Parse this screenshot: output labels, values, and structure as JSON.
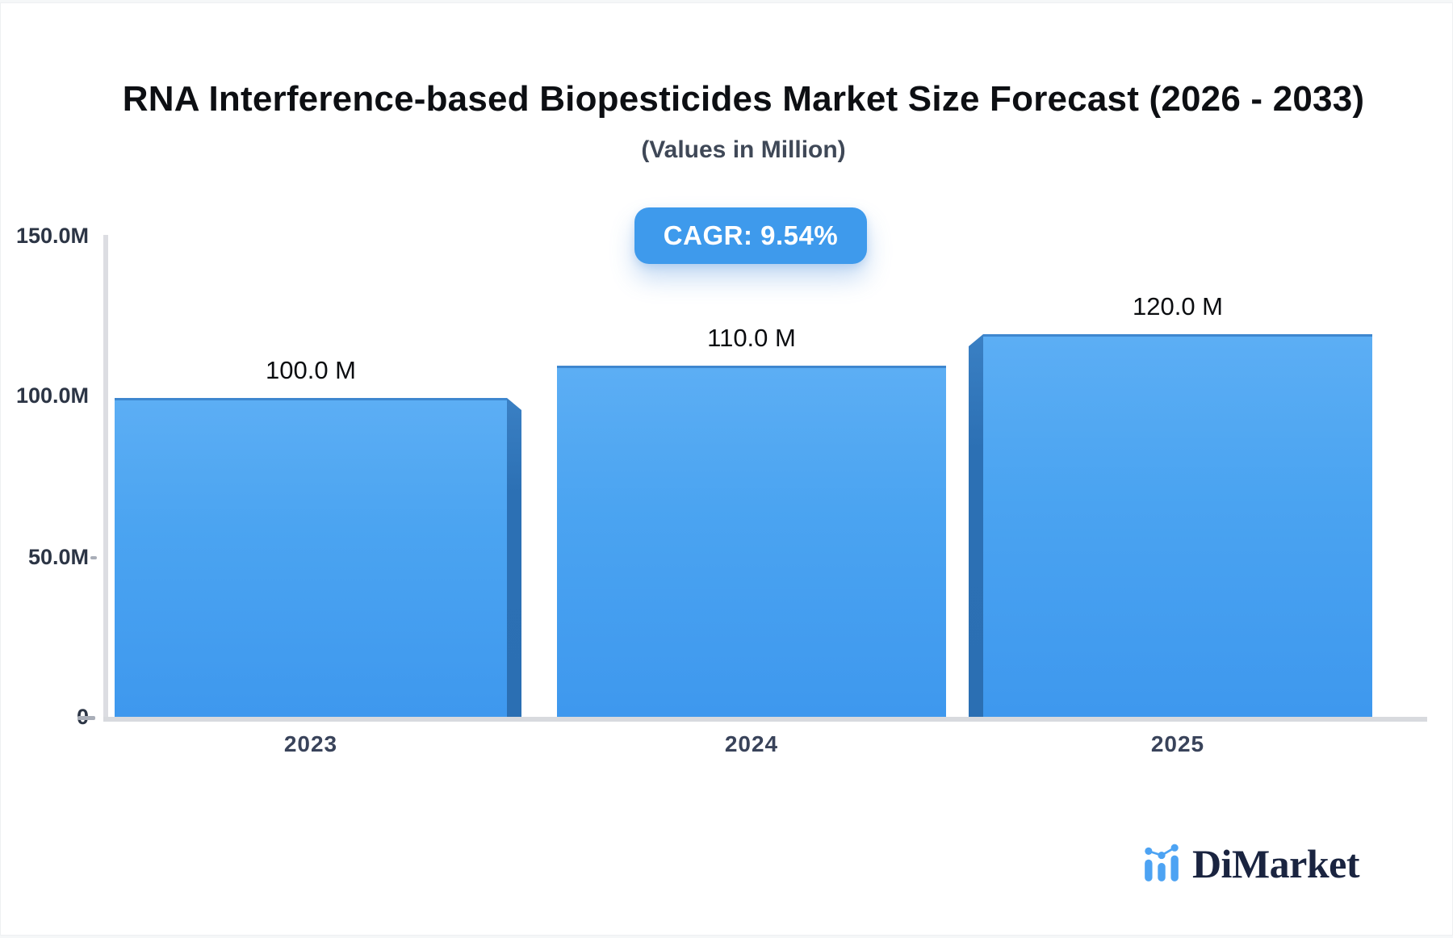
{
  "header": {
    "title": "RNA Interference-based Biopesticides Market Size Forecast (2026 - 2033)",
    "subtitle": "(Values in Million)",
    "cagr_badge": "CAGR: 9.54%"
  },
  "chart_data": {
    "type": "bar",
    "title": "RNA Interference-based Biopesticides Market Size Forecast (2026 - 2033)",
    "subtitle": "(Values in Million)",
    "unit": "Million (M)",
    "categories": [
      "2023",
      "2024",
      "2025"
    ],
    "values": [
      100.0,
      110.0,
      120.0
    ],
    "value_labels": [
      "100.0 M",
      "110.0 M",
      "120.0 M"
    ],
    "cagr_pct": 9.54,
    "ylim": [
      0,
      150
    ],
    "y_tick_labels": [
      "150.0M",
      "100.0M",
      "50.0M",
      "0"
    ],
    "grid": false,
    "legend": "none",
    "bar_style": "3d-extruded",
    "colors": {
      "bar_face_top": "#5caef4",
      "bar_face_bottom": "#3e98ee",
      "bar_top_edge": "#3e87cf",
      "bar_side": "#2c70b4",
      "badge_bg": "#3e9aec",
      "axis_line": "#d8dade",
      "title_text": "#0d0f13",
      "subtitle_text": "#3f4857"
    }
  },
  "branding": {
    "logo_text": "DiMarket",
    "logo_icon": "bar-chart-trend-icon",
    "logo_text_color": "#1a2440",
    "logo_icon_color": "#4da3f3"
  }
}
